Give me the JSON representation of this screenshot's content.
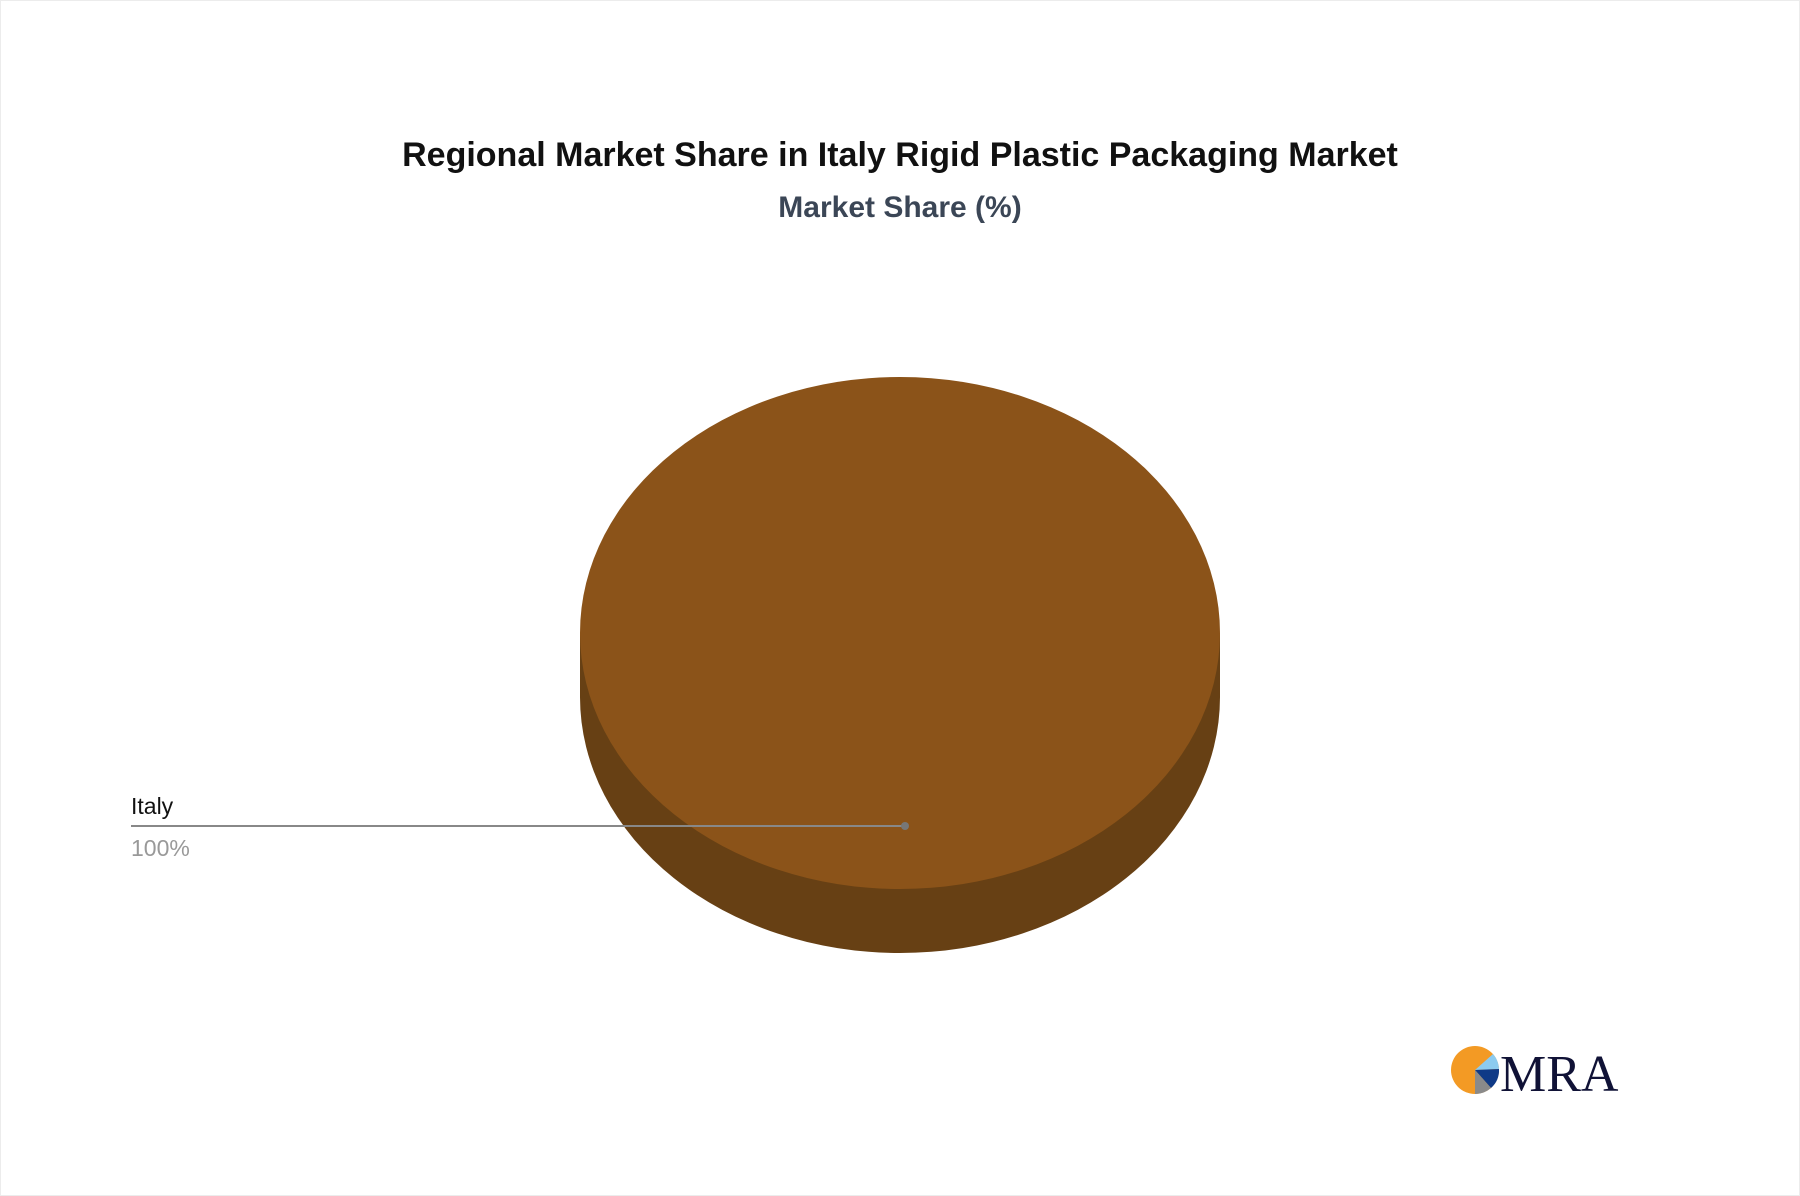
{
  "chart_data": {
    "type": "pie",
    "title": "Regional Market Share in Italy Rigid Plastic Packaging Market",
    "subtitle": "Market Share (%)",
    "slices": [
      {
        "label": "Italy",
        "value": 100,
        "value_label": "100%",
        "color": "#8B5319",
        "side_color": "#674014"
      }
    ],
    "style": "3d",
    "leader_color": "#888888",
    "value_label_color": "#999999"
  },
  "logo": {
    "text": "MRA",
    "colors": {
      "orange": "#F39A24",
      "light_blue": "#8CCBEF",
      "navy": "#0F3A87",
      "gray": "#8A8A8A",
      "text": "#101236"
    }
  }
}
